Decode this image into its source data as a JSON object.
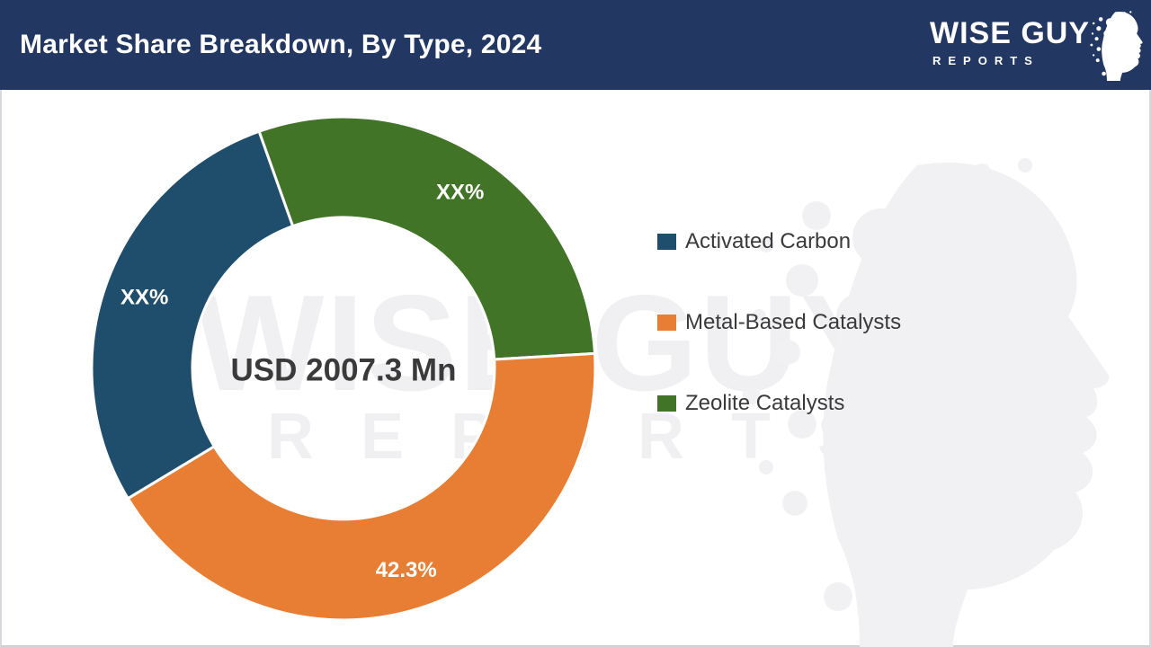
{
  "header": {
    "title": "Market Share Breakdown, By Type, 2024",
    "brand": {
      "line1": "WISE GUY",
      "line2": "REPORTS"
    }
  },
  "watermark": {
    "line1": "WISE GUY",
    "line2": "REPORTS"
  },
  "chart_data": {
    "type": "pie",
    "subtype": "donut",
    "title": "Market Share Breakdown, By Type, 2024",
    "center_label": "USD 2007.3 Mn",
    "legend_position": "right",
    "start_angle_deg": -19.6,
    "draw_order": [
      2,
      1,
      0
    ],
    "segments": [
      {
        "label": "Activated Carbon",
        "value_pct": 28.2,
        "display_label": "XX%",
        "color": "#1F4E6D"
      },
      {
        "label": "Metal-Based Catalysts",
        "value_pct": 42.3,
        "display_label": "42.3%",
        "color": "#E87E33"
      },
      {
        "label": "Zeolite Catalysts",
        "value_pct": 29.5,
        "display_label": "XX%",
        "color": "#427428"
      }
    ]
  }
}
